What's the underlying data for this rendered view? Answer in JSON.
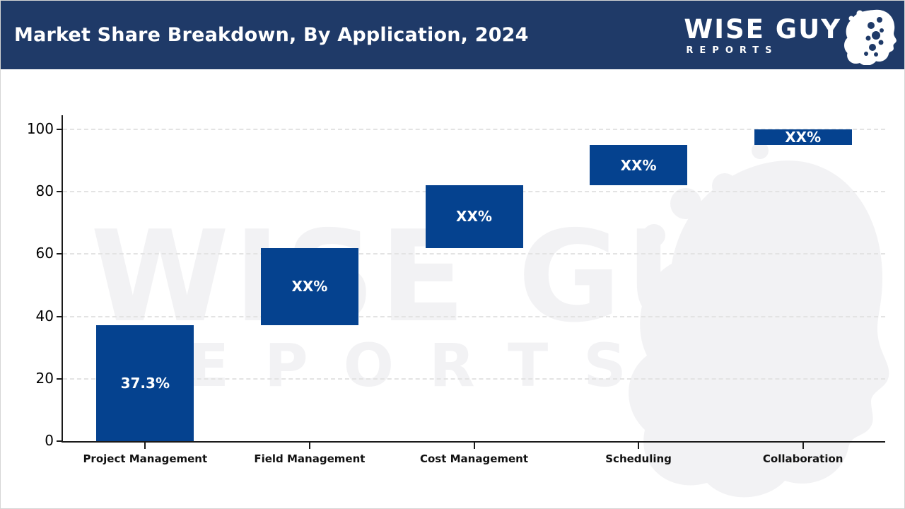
{
  "header": {
    "title": "Market Share Breakdown, By Application, 2024",
    "bg_color": "#1f3a68",
    "logo": {
      "line1": "WISE GUY",
      "line2": "REPORTS"
    }
  },
  "watermark": {
    "line1": "WISE GUY",
    "line2": "REPORTS"
  },
  "chart_data": {
    "type": "bar",
    "subtype": "waterfall",
    "title": "Market Share Breakdown, By Application, 2024",
    "categories": [
      "Project Management",
      "Field Management",
      "Cost Management",
      "Scheduling",
      "Collaboration"
    ],
    "series": [
      {
        "name": "Market Share",
        "segments": [
          {
            "from": 0,
            "to": 37.3,
            "label": "37.3%"
          },
          {
            "from": 37.3,
            "to": 62,
            "label": "XX%"
          },
          {
            "from": 62,
            "to": 82,
            "label": "XX%"
          },
          {
            "from": 82,
            "to": 95,
            "label": "XX%"
          },
          {
            "from": 95,
            "to": 100,
            "label": "XX%"
          }
        ]
      }
    ],
    "y_ticks": [
      0,
      20,
      40,
      60,
      80,
      100
    ],
    "ylim": [
      0,
      105
    ],
    "xlabel": "",
    "ylabel": "",
    "grid": "horizontal-dashed",
    "legend": "none",
    "bar_color": "#05428f",
    "bar_label_color": "#ffffff",
    "axis_color": "#1a1a1a",
    "gridline_color": "#e3e3e3"
  }
}
